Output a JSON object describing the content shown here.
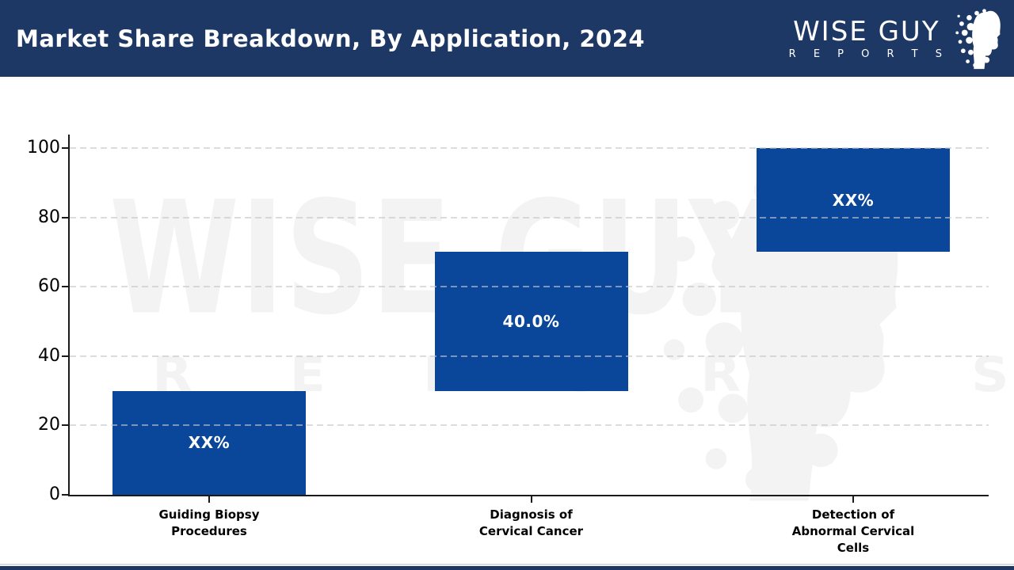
{
  "header": {
    "title": "Market Share Breakdown, By Application, 2024",
    "logo": {
      "name": "WISE GUY",
      "tagline": "R E P O R T S"
    }
  },
  "watermark": {
    "text": "WISE GUY",
    "tagline": "R E P O R T S"
  },
  "colors": {
    "header_bg": "#1e3866",
    "footer_bg": "#1e3866",
    "bar": "#0a4699",
    "bar_label": "#ffffff",
    "axis": "#1a1a1a",
    "gridline": "#d9dce1",
    "tick_label": "#000000",
    "watermark": "#f3f3f3",
    "logo_text": "#ffffff"
  },
  "chart_data": {
    "type": "bar",
    "subtype": "floating-waterfall",
    "title": "Market Share Breakdown, By Application, 2024",
    "categories": [
      "Guiding Biopsy\nProcedures",
      "Diagnosis of\nCervical Cancer",
      "Detection of\nAbnormal Cervical\nCells"
    ],
    "segments": [
      {
        "category": "Guiding Biopsy Procedures",
        "start": 0,
        "end": 30,
        "label": "XX%"
      },
      {
        "category": "Diagnosis of Cervical Cancer",
        "start": 30,
        "end": 70,
        "label": "40.0%"
      },
      {
        "category": "Detection of Abnormal Cervical Cells",
        "start": 70,
        "end": 100,
        "label": "XX%"
      }
    ],
    "ylim": [
      0,
      100
    ],
    "yticks": [
      0,
      20,
      40,
      60,
      80,
      100
    ],
    "xlabel": "",
    "ylabel": "",
    "grid": {
      "horizontal": true,
      "style": "dashed"
    },
    "legend": null,
    "bar_color": "#0a4699"
  }
}
